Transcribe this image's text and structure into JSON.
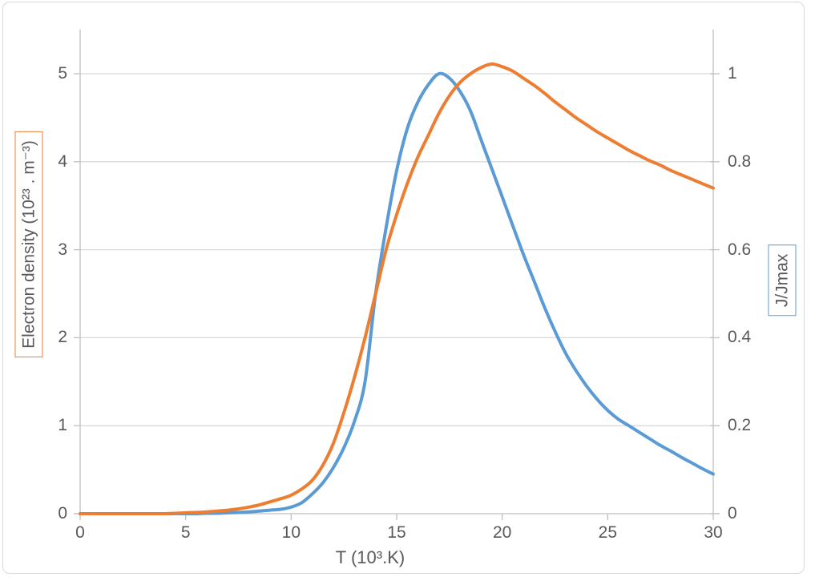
{
  "chart_data": {
    "type": "line",
    "title": "",
    "xlabel": "T (10³.K)",
    "grid": "horizontal",
    "legend": "none",
    "colors": {
      "electron_density": "#ED7D31",
      "j_jmax": "#5B9BD5",
      "gridline": "#D9D9D9",
      "axis": "#BFBFBF",
      "text": "#595959",
      "frame_border": "#D9D9D9"
    },
    "x_axis": {
      "ticks": [
        "0",
        "5",
        "10",
        "15",
        "20",
        "25",
        "30"
      ],
      "tick_values": [
        0,
        5,
        10,
        15,
        20,
        25,
        30
      ],
      "range": [
        0,
        30
      ]
    },
    "left_axis": {
      "label": "Electron density (10²³ . m⁻³)",
      "label_box_color": "#ED7D31",
      "ticks": [
        "0",
        "1",
        "2",
        "3",
        "4",
        "5"
      ],
      "tick_values": [
        0,
        1,
        2,
        3,
        4,
        5
      ],
      "range": [
        0,
        5.5
      ]
    },
    "right_axis": {
      "label": "J/Jmax",
      "label_box_color": "#5B9BD5",
      "ticks": [
        "0",
        "0.2",
        "0.4",
        "0.6",
        "0.8",
        "1"
      ],
      "tick_values": [
        0,
        0.2,
        0.4,
        0.6,
        0.8,
        1
      ],
      "range": [
        0,
        1.1
      ]
    },
    "x": [
      0,
      0.5,
      1,
      1.5,
      2,
      2.5,
      3,
      3.5,
      4,
      4.5,
      5,
      5.5,
      6,
      6.5,
      7,
      7.5,
      8,
      8.5,
      9,
      9.5,
      10,
      10.5,
      11,
      11.5,
      12,
      12.5,
      13,
      13.5,
      14,
      14.5,
      15,
      15.5,
      16,
      16.5,
      17,
      17.5,
      18,
      18.5,
      19,
      19.5,
      20,
      20.5,
      21,
      21.5,
      22,
      22.5,
      23,
      23.5,
      24,
      24.5,
      25,
      25.5,
      26,
      26.5,
      27,
      27.5,
      28,
      28.5,
      29,
      29.5,
      30
    ],
    "series": [
      {
        "name": "Electron density",
        "axis": "left",
        "color": "#ED7D31",
        "peak": {
          "x": 19.5,
          "y": 5.1
        },
        "values": [
          0,
          0,
          0,
          0,
          0,
          0,
          0,
          0,
          0,
          0.005,
          0.01,
          0.015,
          0.02,
          0.03,
          0.04,
          0.055,
          0.075,
          0.1,
          0.135,
          0.17,
          0.21,
          0.28,
          0.38,
          0.55,
          0.8,
          1.15,
          1.55,
          2.0,
          2.5,
          3.0,
          3.4,
          3.75,
          4.05,
          4.3,
          4.55,
          4.75,
          4.9,
          5.0,
          5.07,
          5.11,
          5.08,
          5.03,
          4.95,
          4.87,
          4.78,
          4.68,
          4.59,
          4.5,
          4.42,
          4.34,
          4.27,
          4.2,
          4.13,
          4.07,
          4.01,
          3.96,
          3.9,
          3.85,
          3.8,
          3.75,
          3.7
        ]
      },
      {
        "name": "J/Jmax",
        "axis": "right",
        "color": "#5B9BD5",
        "peak": {
          "x": 17,
          "y": 1.0
        },
        "values": [
          0,
          0,
          0,
          0,
          0,
          0,
          0,
          0,
          0,
          0,
          0,
          0,
          0.001,
          0.001,
          0.002,
          0.003,
          0.004,
          0.006,
          0.008,
          0.01,
          0.015,
          0.025,
          0.045,
          0.07,
          0.105,
          0.15,
          0.21,
          0.3,
          0.5,
          0.65,
          0.78,
          0.875,
          0.935,
          0.975,
          1.0,
          0.99,
          0.96,
          0.915,
          0.85,
          0.785,
          0.72,
          0.655,
          0.59,
          0.53,
          0.47,
          0.415,
          0.365,
          0.325,
          0.29,
          0.26,
          0.235,
          0.215,
          0.2,
          0.185,
          0.17,
          0.155,
          0.142,
          0.128,
          0.115,
          0.102,
          0.09
        ]
      }
    ]
  }
}
